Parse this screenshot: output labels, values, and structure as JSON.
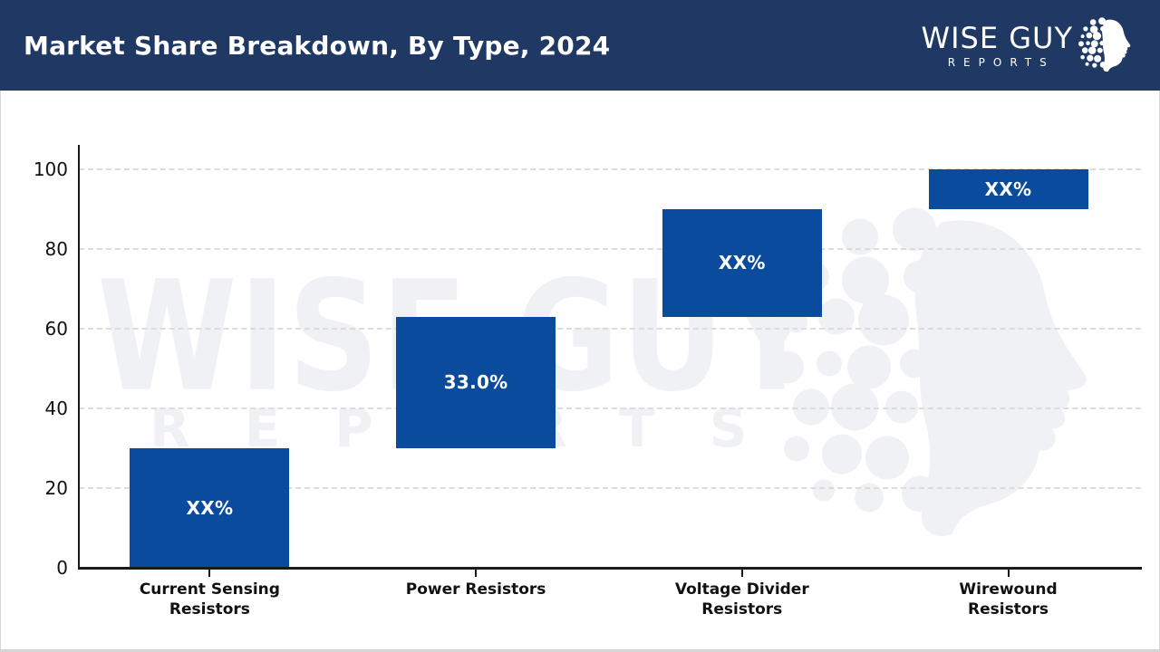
{
  "header": {
    "title": "Market Share Breakdown, By Type, 2024",
    "logo": {
      "primary": "WISE GUY",
      "secondary": "REPORTS"
    }
  },
  "watermark": {
    "primary": "WISE GUY",
    "secondary": "REPORTS"
  },
  "chart_data": {
    "type": "bar",
    "subtype": "floating-segment-waterfall",
    "title": "Market Share Breakdown, By Type, 2024",
    "categories": [
      "Current Sensing\nResistors",
      "Power Resistors",
      "Voltage Divider\nResistors",
      "Wirewound\nResistors"
    ],
    "segments": [
      {
        "category": "Current Sensing Resistors",
        "from": 0,
        "to": 30,
        "label": "XX%"
      },
      {
        "category": "Power Resistors",
        "from": 30,
        "to": 63,
        "label": "33.0%",
        "value": 33.0
      },
      {
        "category": "Voltage Divider Resistors",
        "from": 63,
        "to": 90,
        "label": "XX%"
      },
      {
        "category": "Wirewound Resistors",
        "from": 90,
        "to": 100,
        "label": "XX%"
      }
    ],
    "yticks": [
      0,
      20,
      40,
      60,
      80,
      100
    ],
    "ylim": [
      0,
      105
    ],
    "xlabel": "",
    "ylabel": "",
    "grid": "horizontal-dashed",
    "legend": "none"
  },
  "colors": {
    "header_bg": "#1f3864",
    "bar": "#0b4b9e",
    "bar_label": "#ffffff",
    "grid": "#dcdcdc",
    "axis": "#1a1a1a",
    "watermark": "#f0f1f4",
    "frame_border": "#d5d5da"
  }
}
